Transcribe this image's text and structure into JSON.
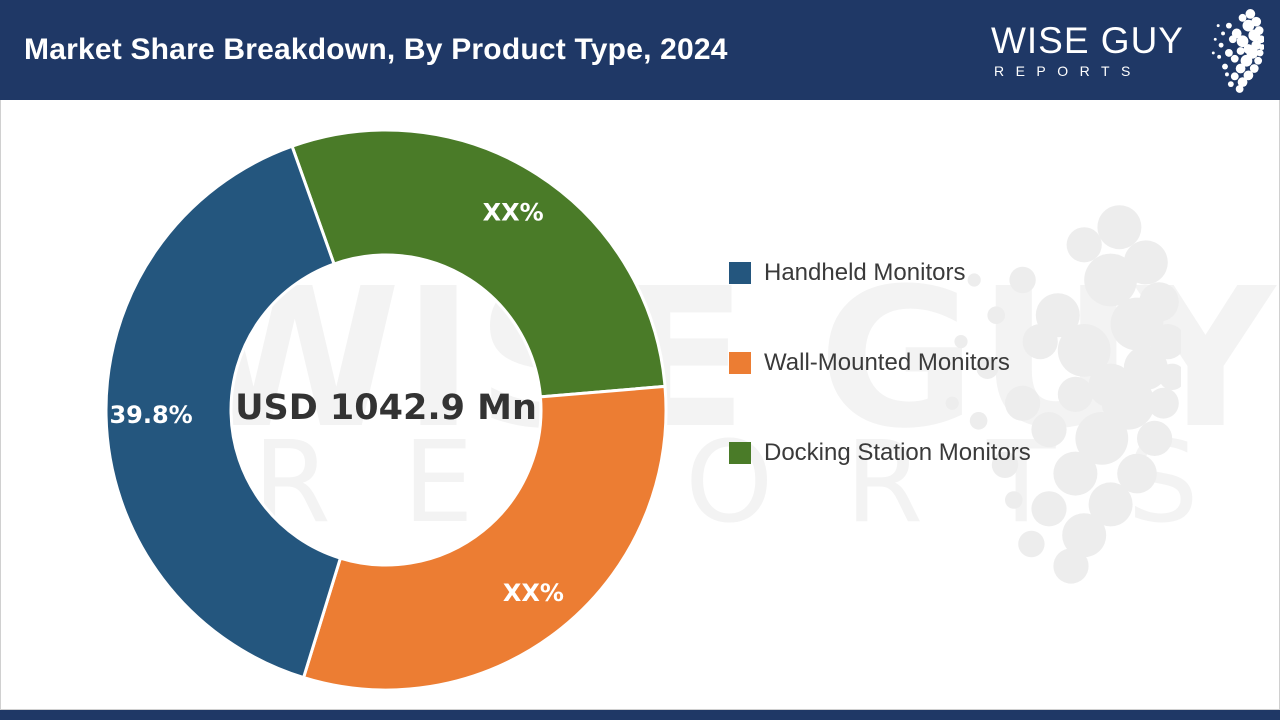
{
  "header": {
    "title": "Market Share Breakdown, By Product Type, 2024",
    "bg_color": "#1f3866",
    "logo": {
      "line1": "WISE GUY",
      "line2": "REPORTS"
    }
  },
  "watermark": {
    "line1": "WISE GUY",
    "line2": "REPORTS"
  },
  "chart_data": {
    "type": "pie",
    "donut": true,
    "title": "Market Share Breakdown, By Product Type, 2024",
    "center_label": "USD 1042.9 Mn",
    "start_angle_deg_from_top": -19.6,
    "segments": [
      {
        "name": "Docking Station Monitors",
        "label": "XX%",
        "value_pct": 29.1,
        "color": "#4a7b28"
      },
      {
        "name": "Wall-Mounted Monitors",
        "label": "XX%",
        "value_pct": 31.1,
        "color": "#ec7d33"
      },
      {
        "name": "Handheld Monitors",
        "label": "39.8%",
        "value_pct": 39.8,
        "color": "#24567e"
      }
    ],
    "legend_position": "right",
    "legend": [
      {
        "label": "Handheld Monitors",
        "color": "#24567e"
      },
      {
        "label": "Wall-Mounted Monitors",
        "color": "#ec7d33"
      },
      {
        "label": "Docking Station Monitors",
        "color": "#4a7b28"
      }
    ]
  },
  "footer": {
    "bg_color": "#1f3866"
  }
}
